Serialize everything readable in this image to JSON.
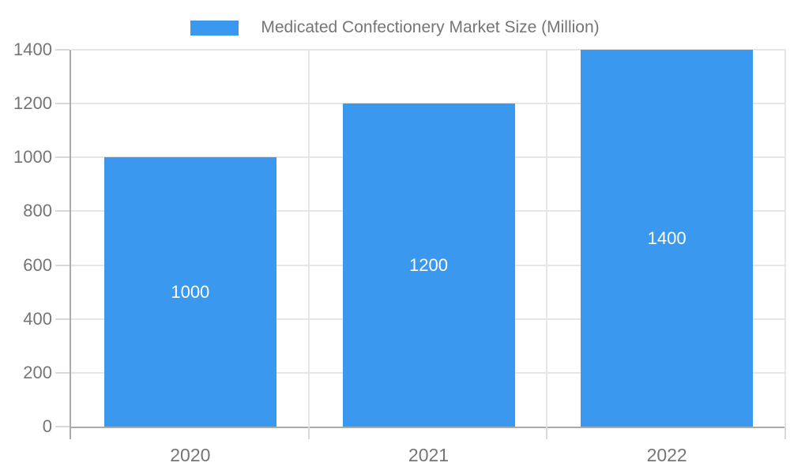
{
  "chart_data": {
    "type": "bar",
    "categories": [
      "2020",
      "2021",
      "2022"
    ],
    "values": [
      1000,
      1200,
      1400
    ],
    "series": [
      {
        "name": "Medicated Confectionery Market Size (Million)",
        "values": [
          1000,
          1200,
          1400
        ]
      }
    ],
    "bar_value_labels": [
      "1000",
      "1200",
      "1400"
    ],
    "title": "",
    "xlabel": "",
    "ylabel": "",
    "ylim": [
      0,
      1400
    ],
    "yticks": [
      0,
      200,
      400,
      600,
      800,
      1000,
      1200,
      1400
    ],
    "grid": true,
    "legend_position": "top-center"
  },
  "legend": {
    "label": "Medicated Confectionery Market Size (Million)"
  },
  "colors": {
    "bar": "#3A99EE",
    "bar_label": "#FFFFFF",
    "axis_text": "#757575",
    "grid": "#E6E6E6",
    "axis_line": "#ABABAB",
    "tick": "#D9D9D9",
    "background": "#FFFFFF"
  }
}
